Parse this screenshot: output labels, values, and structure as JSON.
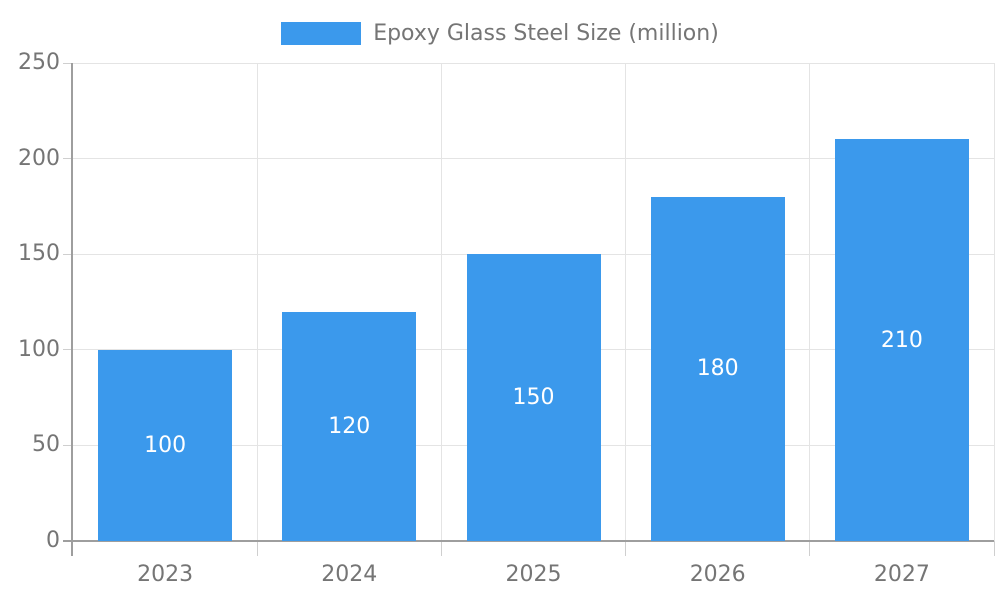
{
  "chart_data": {
    "type": "bar",
    "title": "",
    "legend": {
      "label": "Epoxy Glass Steel Size (million)",
      "position": "top"
    },
    "categories": [
      "2023",
      "2024",
      "2025",
      "2026",
      "2027"
    ],
    "series": [
      {
        "name": "Epoxy Glass Steel Size (million)",
        "values": [
          100,
          120,
          150,
          180,
          210
        ],
        "color": "#3B99EC"
      }
    ],
    "bar_value_labels": [
      "100",
      "120",
      "150",
      "180",
      "210"
    ],
    "xlabel": "",
    "ylabel": "",
    "ylim": [
      0,
      250
    ],
    "yticks": [
      0,
      50,
      100,
      150,
      200,
      250
    ],
    "grid": true,
    "colors": {
      "bar": "#3B99EC",
      "bar_label_text": "#ffffff",
      "axis_line": "#9e9e9e",
      "grid_line": "#e4e4e4",
      "tick_mark": "#cfcfcf",
      "tick_label": "#757575",
      "legend_text": "#757575",
      "background": "#ffffff"
    }
  }
}
